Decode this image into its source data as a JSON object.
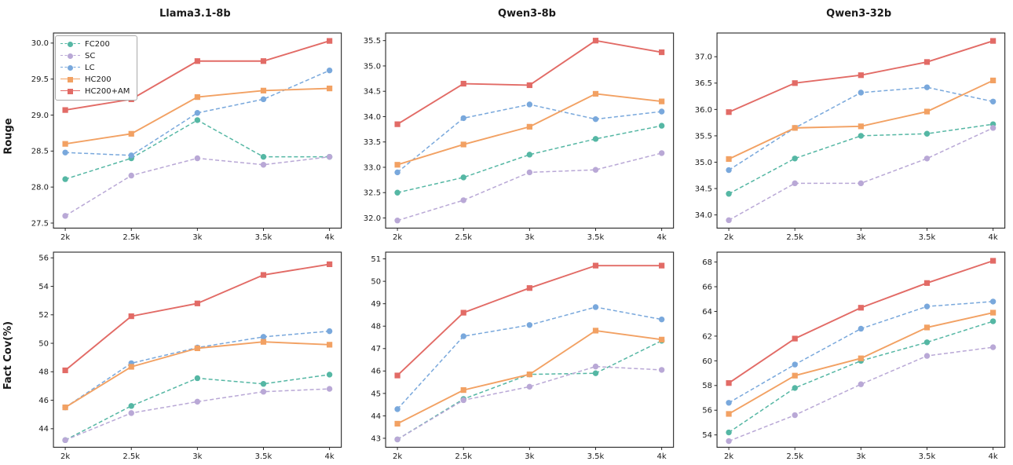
{
  "columns": [
    "Llama3.1-8b",
    "Qwen3-8b",
    "Qwen3-32b"
  ],
  "rows": [
    "Rouge",
    "Fact Cov(%)"
  ],
  "series_meta": [
    {
      "name": "FC200",
      "color": "#55b7a4",
      "dash": true,
      "marker": "circle"
    },
    {
      "name": "SC",
      "color": "#b9a8d6",
      "dash": true,
      "marker": "circle"
    },
    {
      "name": "LC",
      "color": "#79a8dc",
      "dash": true,
      "marker": "circle"
    },
    {
      "name": "HC200",
      "color": "#f2a163",
      "dash": false,
      "marker": "square"
    },
    {
      "name": "HC200+AM",
      "color": "#e26b66",
      "dash": false,
      "marker": "square"
    }
  ],
  "chart_data": [
    {
      "type": "line",
      "title": "Llama3.1-8b",
      "row": "Rouge",
      "x_categories": [
        "2k",
        "2.5k",
        "3k",
        "3.5k",
        "4k"
      ],
      "ylim": [
        27.43,
        30.14
      ],
      "yticks": [
        "27.5",
        "28.0",
        "28.5",
        "29.0",
        "29.5",
        "30.0"
      ],
      "legend": true,
      "series": [
        {
          "name": "FC200",
          "values": [
            28.11,
            28.4,
            28.93,
            28.42,
            28.42
          ]
        },
        {
          "name": "SC",
          "values": [
            27.6,
            28.16,
            28.4,
            28.31,
            28.42
          ]
        },
        {
          "name": "LC",
          "values": [
            28.48,
            28.44,
            29.03,
            29.22,
            29.62
          ]
        },
        {
          "name": "HC200",
          "values": [
            28.6,
            28.74,
            29.25,
            29.34,
            29.37
          ]
        },
        {
          "name": "HC200+AM",
          "values": [
            29.07,
            29.22,
            29.75,
            29.75,
            30.03
          ]
        }
      ]
    },
    {
      "type": "line",
      "title": "Qwen3-8b",
      "row": "Rouge",
      "x_categories": [
        "2k",
        "2.5k",
        "3k",
        "3.5k",
        "4k"
      ],
      "ylim": [
        31.8,
        35.65
      ],
      "yticks": [
        "32.0",
        "32.5",
        "33.0",
        "33.5",
        "34.0",
        "34.5",
        "35.0",
        "35.5"
      ],
      "legend": false,
      "series": [
        {
          "name": "FC200",
          "values": [
            32.5,
            32.8,
            33.25,
            33.56,
            33.82
          ]
        },
        {
          "name": "SC",
          "values": [
            31.95,
            32.35,
            32.9,
            32.95,
            33.28
          ]
        },
        {
          "name": "LC",
          "values": [
            32.9,
            33.97,
            34.24,
            33.95,
            34.1
          ]
        },
        {
          "name": "HC200",
          "values": [
            33.05,
            33.45,
            33.8,
            34.45,
            34.3
          ]
        },
        {
          "name": "HC200+AM",
          "values": [
            33.85,
            34.65,
            34.62,
            35.5,
            35.27
          ]
        }
      ]
    },
    {
      "type": "line",
      "title": "Qwen3-32b",
      "row": "Rouge",
      "x_categories": [
        "2k",
        "2.5k",
        "3k",
        "3.5k",
        "4k"
      ],
      "ylim": [
        33.75,
        37.45
      ],
      "yticks": [
        "34.0",
        "34.5",
        "35.0",
        "35.5",
        "36.0",
        "36.5",
        "37.0"
      ],
      "legend": false,
      "series": [
        {
          "name": "FC200",
          "values": [
            34.4,
            35.07,
            35.5,
            35.54,
            35.72
          ]
        },
        {
          "name": "SC",
          "values": [
            33.9,
            34.6,
            34.6,
            35.07,
            35.65
          ]
        },
        {
          "name": "LC",
          "values": [
            34.85,
            35.65,
            36.32,
            36.42,
            36.15
          ]
        },
        {
          "name": "HC200",
          "values": [
            35.06,
            35.65,
            35.68,
            35.96,
            36.55
          ]
        },
        {
          "name": "HC200+AM",
          "values": [
            35.95,
            36.5,
            36.65,
            36.9,
            37.3
          ]
        }
      ]
    },
    {
      "type": "line",
      "title": "Llama3.1-8b",
      "row": "Fact Cov(%)",
      "x_categories": [
        "2k",
        "2.5k",
        "3k",
        "3.5k",
        "4k"
      ],
      "ylim": [
        42.7,
        56.4
      ],
      "yticks": [
        "44",
        "46",
        "48",
        "50",
        "52",
        "54",
        "56"
      ],
      "legend": false,
      "series": [
        {
          "name": "FC200",
          "values": [
            43.2,
            45.6,
            47.55,
            47.15,
            47.8
          ]
        },
        {
          "name": "SC",
          "values": [
            43.2,
            45.1,
            45.9,
            46.6,
            46.8
          ]
        },
        {
          "name": "LC",
          "values": [
            45.5,
            48.6,
            49.7,
            50.45,
            50.85
          ]
        },
        {
          "name": "HC200",
          "values": [
            45.5,
            48.35,
            49.65,
            50.1,
            49.9
          ]
        },
        {
          "name": "HC200+AM",
          "values": [
            48.1,
            51.9,
            52.8,
            54.8,
            55.55
          ]
        }
      ]
    },
    {
      "type": "line",
      "title": "Qwen3-8b",
      "row": "Fact Cov(%)",
      "x_categories": [
        "2k",
        "2.5k",
        "3k",
        "3.5k",
        "4k"
      ],
      "ylim": [
        42.6,
        51.3
      ],
      "yticks": [
        "43",
        "44",
        "45",
        "46",
        "47",
        "48",
        "49",
        "50",
        "51"
      ],
      "legend": false,
      "series": [
        {
          "name": "FC200",
          "values": [
            42.95,
            44.75,
            45.85,
            45.9,
            47.35
          ]
        },
        {
          "name": "SC",
          "values": [
            42.95,
            44.7,
            45.3,
            46.2,
            46.05
          ]
        },
        {
          "name": "LC",
          "values": [
            44.3,
            47.55,
            48.05,
            48.85,
            48.3
          ]
        },
        {
          "name": "HC200",
          "values": [
            43.65,
            45.15,
            45.85,
            47.8,
            47.4
          ]
        },
        {
          "name": "HC200+AM",
          "values": [
            45.8,
            48.6,
            49.7,
            50.7,
            50.7
          ]
        }
      ]
    },
    {
      "type": "line",
      "title": "Qwen3-32b",
      "row": "Fact Cov(%)",
      "x_categories": [
        "2k",
        "2.5k",
        "3k",
        "3.5k",
        "4k"
      ],
      "ylim": [
        53.0,
        68.8
      ],
      "yticks": [
        "54",
        "56",
        "58",
        "60",
        "62",
        "64",
        "66",
        "68"
      ],
      "legend": false,
      "series": [
        {
          "name": "FC200",
          "values": [
            54.2,
            57.8,
            60.0,
            61.5,
            63.2
          ]
        },
        {
          "name": "SC",
          "values": [
            53.5,
            55.6,
            58.1,
            60.4,
            61.1
          ]
        },
        {
          "name": "LC",
          "values": [
            56.6,
            59.7,
            62.6,
            64.4,
            64.8
          ]
        },
        {
          "name": "HC200",
          "values": [
            55.7,
            58.8,
            60.2,
            62.7,
            63.9
          ]
        },
        {
          "name": "HC200+AM",
          "values": [
            58.2,
            61.8,
            64.3,
            66.3,
            68.1
          ]
        }
      ]
    }
  ]
}
